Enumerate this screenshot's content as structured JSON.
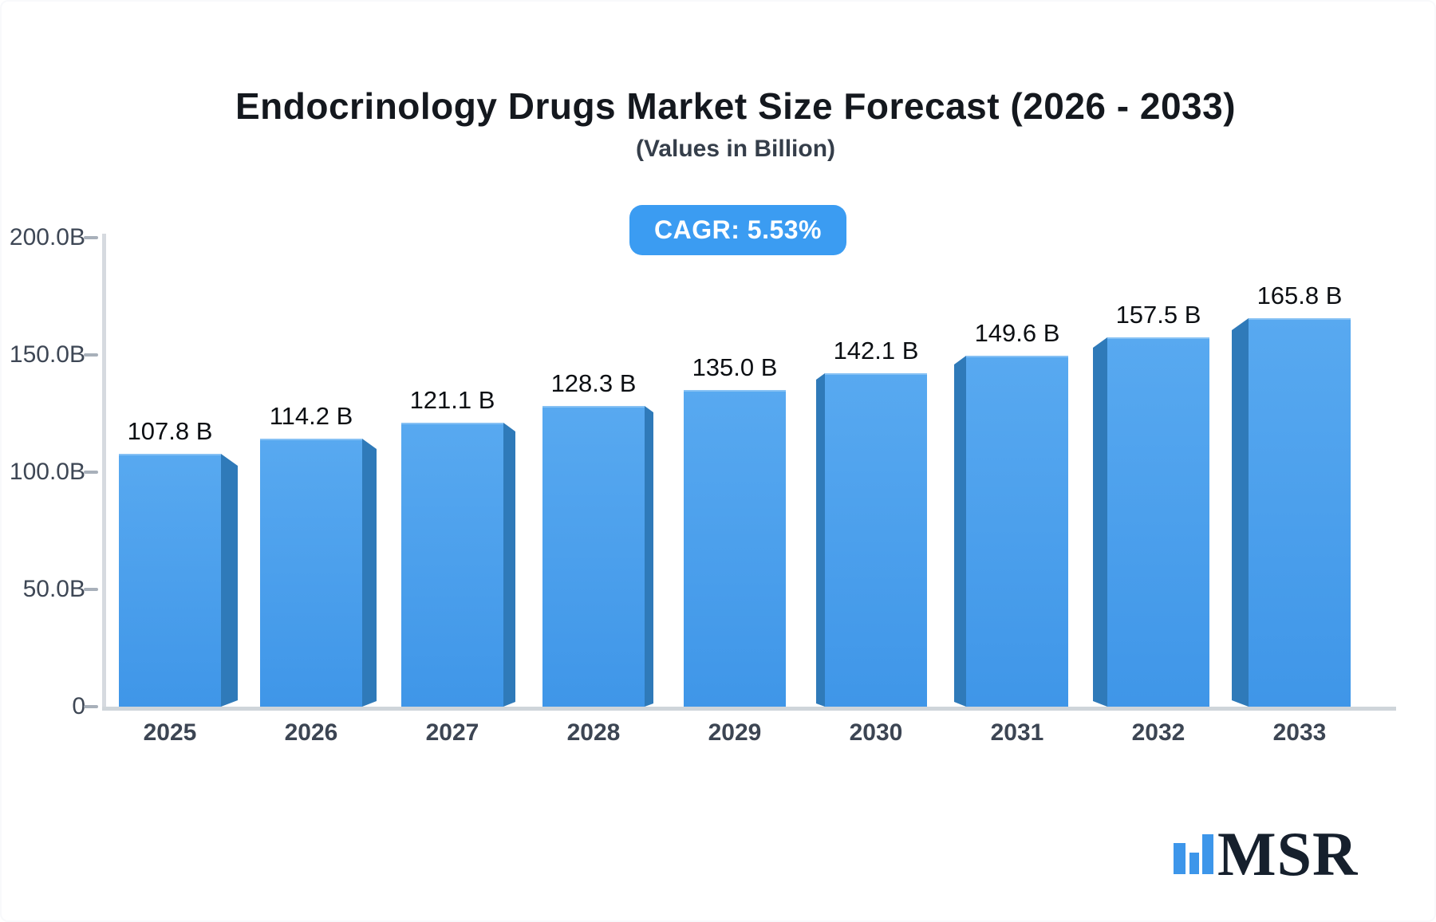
{
  "header": {
    "title": "Endocrinology Drugs Market Size Forecast (2026 - 2033)",
    "subtitle": "(Values in Billion)",
    "cagr_label": "CAGR: 5.53%"
  },
  "chart_data": {
    "type": "bar",
    "title": "Endocrinology Drugs Market Size Forecast (2026 - 2033)",
    "subtitle": "(Values in Billion)",
    "annotation": "CAGR: 5.53%",
    "categories": [
      "2025",
      "2026",
      "2027",
      "2028",
      "2029",
      "2030",
      "2031",
      "2032",
      "2033"
    ],
    "values": [
      107.8,
      114.2,
      121.1,
      128.3,
      135.0,
      142.1,
      149.6,
      157.5,
      165.8
    ],
    "value_labels": [
      "107.8 B",
      "114.2 B",
      "121.1 B",
      "128.3 B",
      "135.0 B",
      "142.1 B",
      "149.6 B",
      "157.5 B",
      "165.8 B"
    ],
    "unit": "Billion",
    "xlabel": "",
    "ylabel": "",
    "ylim": [
      0,
      200
    ],
    "ytick_values": [
      0,
      50,
      100,
      150,
      200
    ],
    "ytick_labels": [
      "0",
      "50.0B",
      "100.0B",
      "150.0B",
      "200.0B"
    ],
    "grid": false,
    "legend": null,
    "style": "3d-perspective-columns"
  },
  "logo": {
    "text": "MSR",
    "icon": "bar-chart-icon"
  },
  "colors": {
    "bar_face_top": "#58A9F0",
    "bar_face_bottom": "#3F96E8",
    "bar_side": "#2F7AB9",
    "badge_bg": "#3B9CF2",
    "axis_line": "#D6DADF",
    "tick_dash": "#A8B0BA",
    "logo_blue": "#3D96EA",
    "logo_text": "#16202D"
  }
}
